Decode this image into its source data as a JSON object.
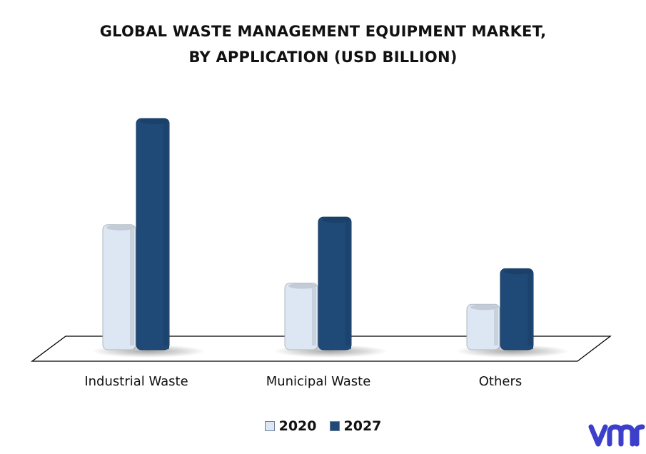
{
  "title_lines": [
    "GLOBAL WASTE MANAGEMENT EQUIPMENT MARKET,",
    "BY APPLICATION (USD BILLION)"
  ],
  "chart_data": {
    "type": "bar",
    "categories": [
      "Industrial Waste",
      "Municipal Waste",
      "Others"
    ],
    "series": [
      {
        "name": "2020",
        "values": [
          16.5,
          8.8,
          6.0
        ],
        "color": "#dce7f3"
      },
      {
        "name": "2027",
        "values": [
          30.5,
          17.5,
          10.7
        ],
        "color": "#1f4a78"
      }
    ],
    "ylim": [
      0,
      32
    ],
    "grid": false,
    "legend_position": "bottom"
  },
  "logo_text": "vmr",
  "logo_color": "#3b3fc9"
}
